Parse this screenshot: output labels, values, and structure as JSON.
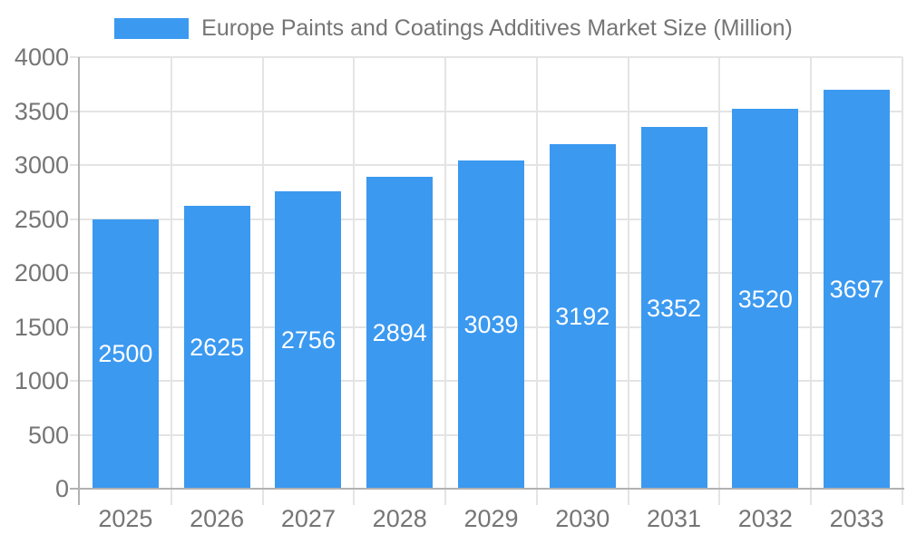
{
  "chart_data": {
    "type": "bar",
    "title": "Europe Paints and Coatings Additives Market Size (Million)",
    "legend": [
      "Europe Paints and Coatings Additives Market Size (Million)"
    ],
    "legend_position": "top",
    "categories": [
      "2025",
      "2026",
      "2027",
      "2028",
      "2029",
      "2030",
      "2031",
      "2032",
      "2033"
    ],
    "values": [
      2500,
      2625,
      2756,
      2894,
      3039,
      3192,
      3352,
      3520,
      3697
    ],
    "xlabel": "",
    "ylabel": "",
    "ylim": [
      0,
      4000
    ],
    "ytick_step": 500,
    "ytick_labels": [
      "0",
      "500",
      "1000",
      "1500",
      "2000",
      "2500",
      "3000",
      "3500",
      "4000"
    ],
    "grid": true,
    "value_labels": "inside-center",
    "colors": {
      "bar": "#3B99F0",
      "axis_text": "#757575",
      "grid_line": "#e4e4e4",
      "axis_line": "#b2b2b2",
      "value_label": "#ffffff",
      "background": "#ffffff"
    }
  }
}
